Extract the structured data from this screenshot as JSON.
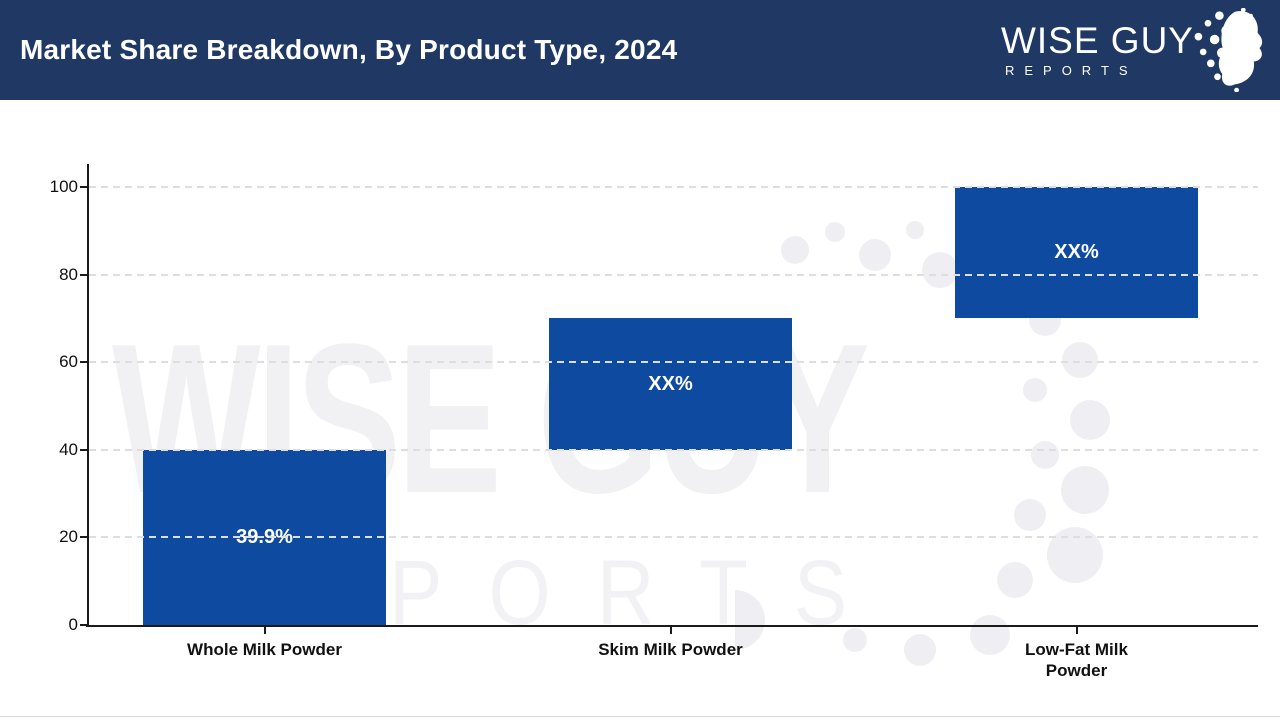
{
  "header": {
    "title": "Market Share Breakdown, By Product Type, 2024",
    "logo": {
      "line1": "WISE GUY",
      "line2": "REPORTS"
    }
  },
  "watermark": {
    "line1": "WISE GUY",
    "line2": "REPORTS"
  },
  "colors": {
    "header_bg": "#1F3864",
    "bar_blue": "#0D4AA0",
    "value_label": "#FFFFFF",
    "grid_gray": "#DEDEDE",
    "axis_black": "#1A1A1A",
    "watermark_gray": "#F1F1F4"
  },
  "chart_data": {
    "type": "bar",
    "variant": "floating-segment-bars",
    "title": "Market Share Breakdown, By Product Type, 2024",
    "categories": [
      "Whole Milk Powder",
      "Skim Milk Powder",
      "Low-Fat Milk Powder"
    ],
    "segments": [
      {
        "category": "Whole Milk Powder",
        "start": 0,
        "end": 39.9,
        "label": "39.9%"
      },
      {
        "category": "Skim Milk Powder",
        "start": 40,
        "end": 70,
        "label": "XX%"
      },
      {
        "category": "Low-Fat Milk Powder",
        "start": 70,
        "end": 100,
        "label": "XX%"
      }
    ],
    "yticks": [
      0,
      20,
      40,
      60,
      80,
      100
    ],
    "ylim": [
      0,
      100
    ],
    "xlabel": "",
    "ylabel": "",
    "grid": "horizontal-dashed",
    "legend": false,
    "bar_color": "#0D4AA0",
    "value_label_color": "#FFFFFF"
  }
}
